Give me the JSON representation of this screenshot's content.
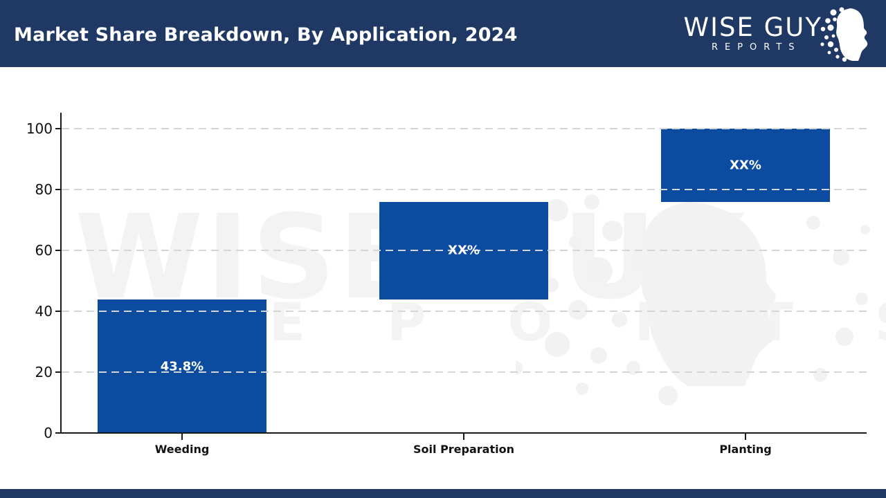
{
  "header": {
    "title": "Market Share Breakdown, By Application, 2024",
    "bg_color": "#1f3864",
    "logo": {
      "line1": "WISE GUY",
      "line2": "REPORTS"
    }
  },
  "footer": {
    "bg_color": "#1f3864"
  },
  "watermark": {
    "line1": "WISE GUY",
    "line2": "R E P O R T S",
    "color": "#f3f3f3"
  },
  "chart_data": {
    "type": "bar",
    "subtype": "floating-waterfall",
    "title": "Market Share Breakdown, By Application, 2024",
    "categories": [
      "Weeding",
      "Soil Preparation",
      "Planting"
    ],
    "series": [
      {
        "name": "Market Share",
        "segments": [
          {
            "category": "Weeding",
            "start": 0,
            "end": 43.8,
            "label": "43.8%"
          },
          {
            "category": "Soil Preparation",
            "start": 43.8,
            "end": 76,
            "label": "XX%"
          },
          {
            "category": "Planting",
            "start": 76,
            "end": 100,
            "label": "XX%"
          }
        ]
      }
    ],
    "bar_color": "#0b4ba0",
    "bar_label_color": "#ffffff",
    "yticks": [
      0,
      20,
      40,
      60,
      80,
      100
    ],
    "ylim": [
      0,
      105
    ],
    "xlabel": "",
    "ylabel": "",
    "grid": "horizontal-dashed",
    "gridline_color": "#d5d5d5",
    "legend": "none"
  }
}
